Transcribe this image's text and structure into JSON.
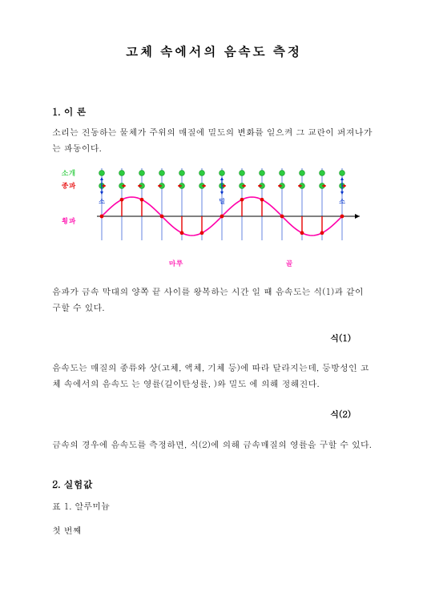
{
  "title": "고체 속에서의 음속도 측정",
  "section1": {
    "heading": "1. 이 론",
    "para1": "소리는 진동하는 물체가 주위의 매질에 밀도의 변화를 일으켜 그 교란이 퍼져나가는 파동이다.",
    "para2": "음파가 금속 막대의 양쪽 끝 사이를 왕복하는 시간     일 때 음속도는 식(1)과 같이 구할 수 있다.",
    "eq1": "식(1)",
    "para3": "음속도는 매질의 종류와 상(고체, 액체, 기체 등)에 따라 달라지는데, 등방성인 고체 속에서의 음속도   는 영률(길이탄성률,  )와 밀도    에 의해 정해진다.",
    "eq2": "식(2)",
    "para4": "금속의 경우에 음속도를 측정하면, 식(2)에 의해 금속매질의 영률을 구할 수 있다."
  },
  "section2": {
    "heading": "2. 실험값",
    "table_caption": "표 1. 알루미늄",
    "row_label": "첫 번째"
  },
  "chart": {
    "labels": {
      "row_top": "소개",
      "row_mid": "종파",
      "row_wave": "횡파",
      "blue_top": "소",
      "blue_mid": "밀",
      "blue_bot": "소",
      "sub_left": "마루",
      "sub_right": "골"
    },
    "colors": {
      "green": "#2ecc40",
      "green_stroke": "#1a9e2c",
      "red": "#e60000",
      "magenta": "#ff00aa",
      "blue": "#0033cc",
      "grid": "#0033cc",
      "black": "#000000"
    },
    "grid_count": 12,
    "cycles": 2
  }
}
